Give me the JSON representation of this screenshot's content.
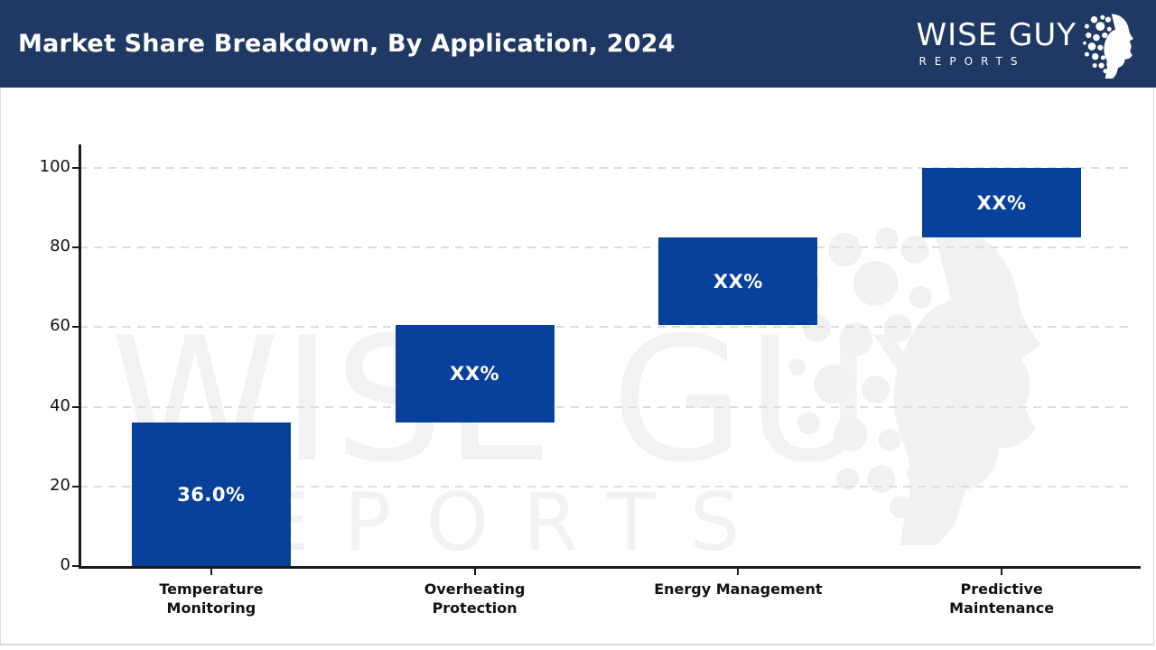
{
  "header": {
    "title": "Market Share Breakdown, By Application, 2024",
    "logo": {
      "line1": "WISE GUY",
      "line2": "REPORTS"
    }
  },
  "watermark": {
    "line1": "WISE GUY",
    "line2": "REPORTS"
  },
  "chart_data": {
    "type": "bar",
    "subtype": "waterfall",
    "title": "Market Share Breakdown, By Application, 2024",
    "unit": "%",
    "categories": [
      "Temperature Monitoring",
      "Overheating Protection",
      "Energy Management",
      "Predictive Maintenance"
    ],
    "category_label_lines": [
      [
        "Temperature",
        "Monitoring"
      ],
      [
        "Overheating",
        "Protection"
      ],
      [
        "Energy Management"
      ],
      [
        "Predictive",
        "Maintenance"
      ]
    ],
    "segments": [
      {
        "category": "Temperature Monitoring",
        "start": 0,
        "end": 36,
        "label": "36.0%"
      },
      {
        "category": "Overheating Protection",
        "start": 36,
        "end": 60.5,
        "label": "XX%"
      },
      {
        "category": "Energy Management",
        "start": 60.5,
        "end": 82.5,
        "label": "XX%"
      },
      {
        "category": "Predictive Maintenance",
        "start": 82.5,
        "end": 100,
        "label": "XX%"
      }
    ],
    "yticks": [
      0,
      20,
      40,
      60,
      80,
      100
    ],
    "ylim": [
      0,
      106
    ],
    "grid": "horizontal-dashed",
    "legend": "none",
    "colors": {
      "bar": "#08419c",
      "bar_label": "#ffffff",
      "header_bg": "#1f3864",
      "grid_line": "#dcdcdc",
      "axis": "#1a1a1a",
      "watermark": "#f2f2f4"
    }
  }
}
